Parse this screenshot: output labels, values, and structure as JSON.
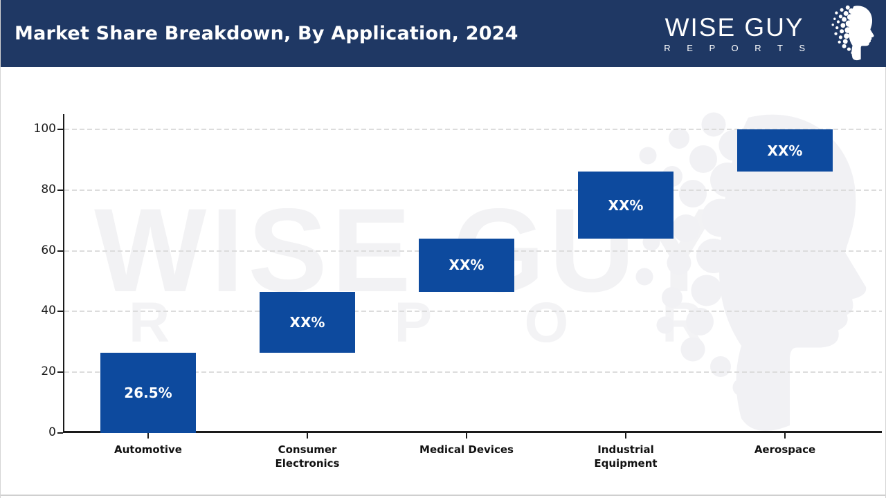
{
  "header": {
    "title": "Market Share Breakdown, By Application, 2024",
    "logo": {
      "line1": "WISE GUY",
      "line2": "R E P O R T S"
    }
  },
  "watermark": {
    "line1": "WISE GUY",
    "line2": "R E P O R T S"
  },
  "chart_data": {
    "type": "bar",
    "subtype": "waterfall",
    "title": "Market Share Breakdown, By Application, 2024",
    "categories": [
      "Automotive",
      "Consumer Electronics",
      "Medical Devices",
      "Industrial Equipment",
      "Aerospace"
    ],
    "category_label_lines": [
      [
        "Automotive"
      ],
      [
        "Consumer",
        "Electronics"
      ],
      [
        "Medical Devices"
      ],
      [
        "Industrial",
        "Equipment"
      ],
      [
        "Aerospace"
      ]
    ],
    "segments": [
      {
        "category": "Automotive",
        "start": 0,
        "end": 26.5,
        "value": 26.5,
        "label": "26.5%"
      },
      {
        "category": "Consumer Electronics",
        "start": 26.5,
        "end": 46.5,
        "value": 20,
        "label": "XX%"
      },
      {
        "category": "Medical Devices",
        "start": 46.5,
        "end": 64,
        "value": 17.5,
        "label": "XX%"
      },
      {
        "category": "Industrial Equipment",
        "start": 64,
        "end": 86,
        "value": 22,
        "label": "XX%"
      },
      {
        "category": "Aerospace",
        "start": 86,
        "end": 100,
        "value": 14,
        "label": "XX%"
      }
    ],
    "xlabel": "",
    "ylabel": "",
    "ylim": [
      0,
      100
    ],
    "yticks": [
      0,
      20,
      40,
      60,
      80,
      100
    ],
    "grid": "horizontal-dashed",
    "legend": "none",
    "colors": {
      "bar": "#0d4a9e",
      "header_bg": "#1f3864",
      "grid": "#dcdcdc",
      "axis": "#1a1a1a",
      "bar_label_text": "#ffffff",
      "watermark": "#f2f2f4"
    }
  }
}
